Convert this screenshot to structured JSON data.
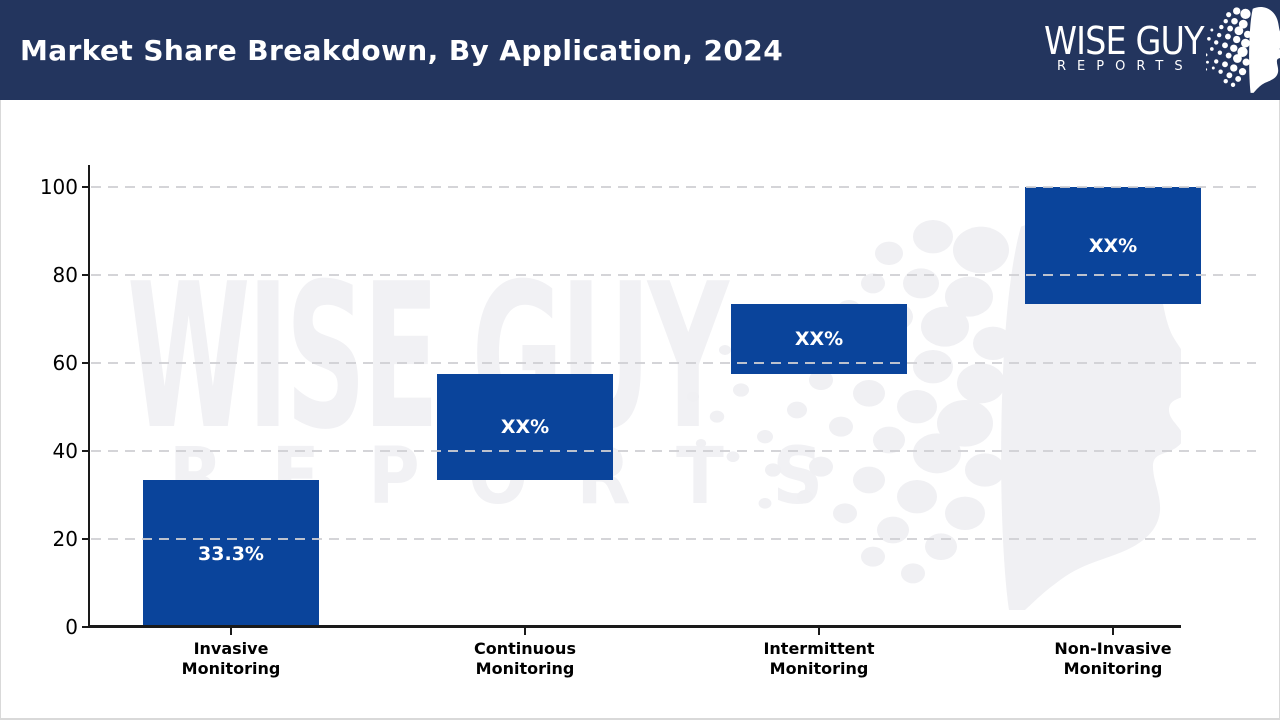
{
  "header": {
    "title": "Market Share Breakdown, By Application, 2024",
    "logo": {
      "line1": "WISE GUY",
      "line2": "REPORTS"
    }
  },
  "watermark": {
    "line1": "WISE GUY",
    "line2": "REPORTS"
  },
  "colors": {
    "header_bg": "#23355e",
    "bar": "#0a449b",
    "axis": "#1a1a1a",
    "gridline": "#d0d0d4",
    "watermark": "#f0f0f3",
    "title_text": "#ffffff",
    "bar_label_text": "#ffffff"
  },
  "chart_data": {
    "type": "bar",
    "subtype": "stacked-waterfall",
    "title": "Market Share Breakdown, By Application, 2024",
    "categories": [
      "Invasive Monitoring",
      "Continuous Monitoring",
      "Intermittent Monitoring",
      "Non-Invasive Monitoring"
    ],
    "category_label_lines": [
      [
        "Invasive",
        "Monitoring"
      ],
      [
        "Continuous",
        "Monitoring"
      ],
      [
        "Intermittent",
        "Monitoring"
      ],
      [
        "Non-Invasive",
        "Monitoring"
      ]
    ],
    "segments": [
      {
        "category": "Invasive Monitoring",
        "from": 0,
        "to": 33.3,
        "label": "33.3%"
      },
      {
        "category": "Continuous Monitoring",
        "from": 33.3,
        "to": 57.5,
        "label": "XX%"
      },
      {
        "category": "Intermittent Monitoring",
        "from": 57.5,
        "to": 73.4,
        "label": "XX%"
      },
      {
        "category": "Non-Invasive Monitoring",
        "from": 73.4,
        "to": 100,
        "label": "XX%"
      }
    ],
    "ylim": [
      0,
      100
    ],
    "yticks": [
      0,
      20,
      40,
      60,
      80,
      100
    ],
    "xlabel": "",
    "ylabel": "",
    "legend": "none",
    "grid": "horizontal-dashed"
  }
}
